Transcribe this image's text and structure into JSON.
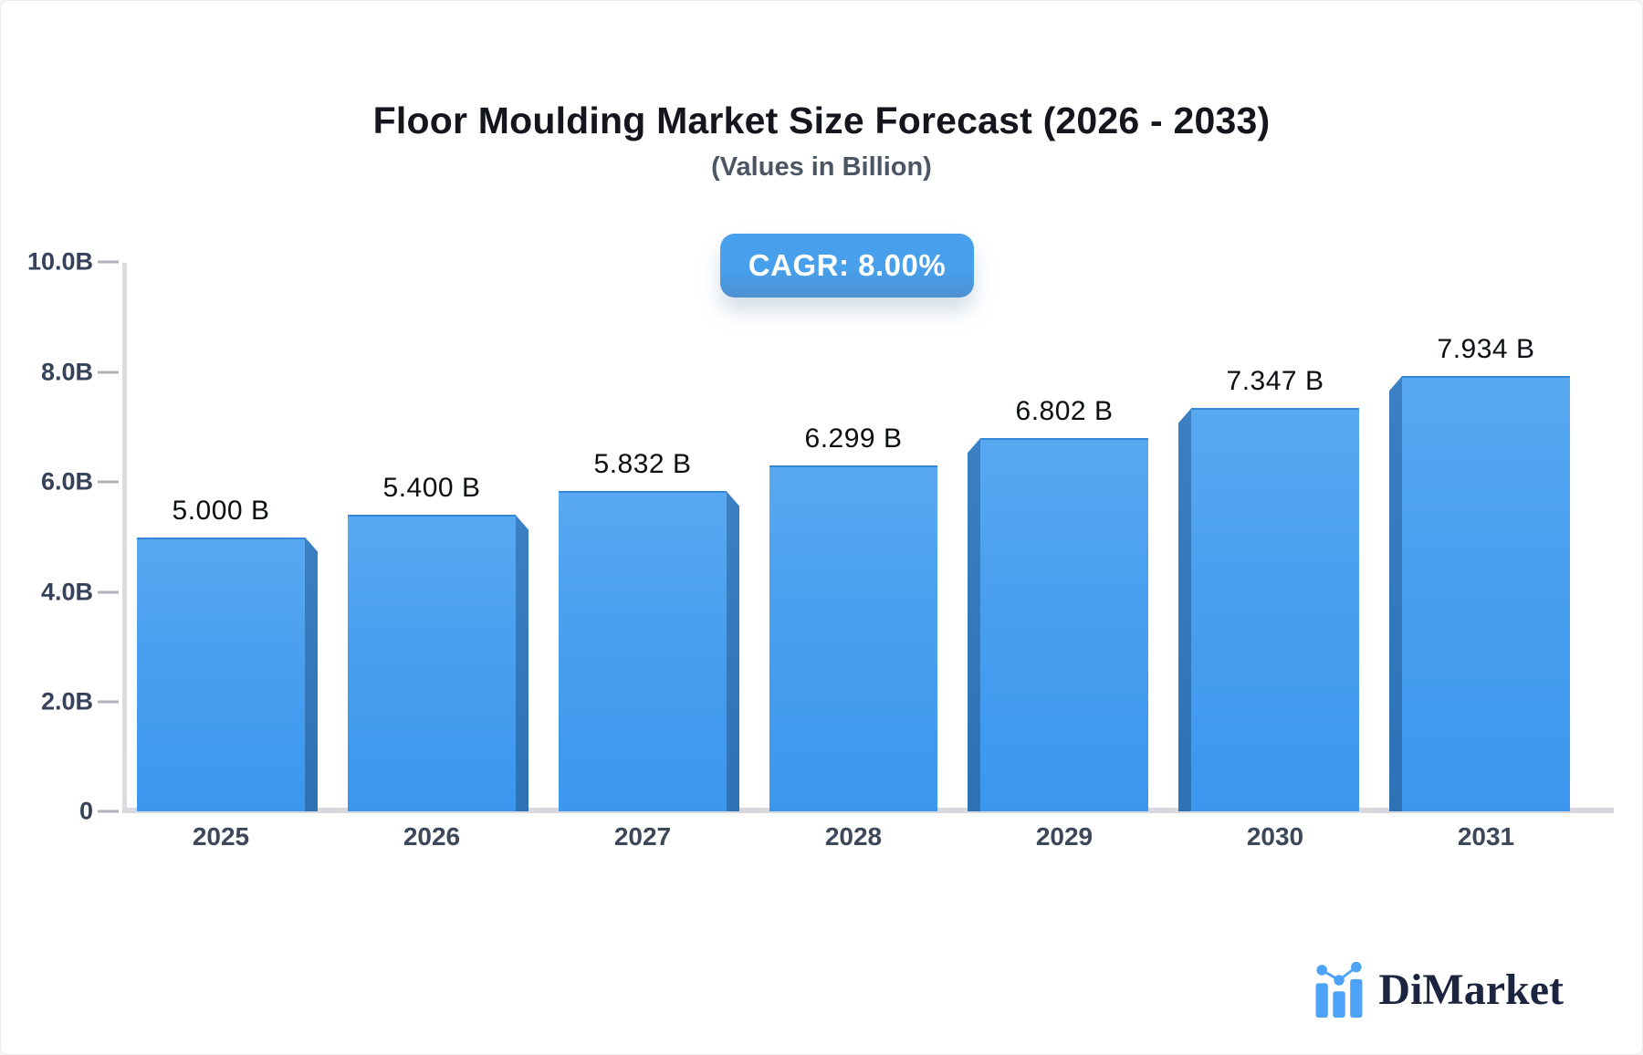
{
  "header": {
    "title": "Floor Moulding Market Size Forecast (2026 - 2033)",
    "subtitle": "(Values in Billion)",
    "cagr_badge_label": "CAGR: 8.00%"
  },
  "chart_data": {
    "type": "bar",
    "categories": [
      "2025",
      "2026",
      "2027",
      "2028",
      "2029",
      "2030",
      "2031"
    ],
    "values": [
      5.0,
      5.4,
      5.832,
      6.299,
      6.802,
      7.347,
      7.934
    ],
    "value_labels": [
      "5.000 B",
      "5.400 B",
      "5.832 B",
      "6.299 B",
      "6.802 B",
      "7.347 B",
      "7.934 B"
    ],
    "title": "Floor Moulding Market Size Forecast (2026 - 2033)",
    "subtitle": "(Values in Billion)",
    "xlabel": "",
    "ylabel": "",
    "ylim": [
      0,
      10
    ],
    "ytick_labels": [
      "10.0B",
      "8.0B",
      "6.0B",
      "4.0B",
      "2.0B",
      "0"
    ],
    "ytick_values": [
      10,
      8,
      6,
      4,
      2,
      0
    ],
    "grid": false,
    "legend_position": "none",
    "annotation": "CAGR: 8.00%"
  },
  "colors": {
    "bar_top": "#58a9f1",
    "bar_bottom": "#3b97ee",
    "bar_side": "#2d72b4",
    "badge_blue": "#47a0ec",
    "axis_line": "#dcdce2",
    "axis_text": "#36425a",
    "title_text": "#14151d",
    "logo_navy": "#1c2540",
    "logo_blue": "#4da3f7"
  },
  "branding": {
    "logo_text": "DiMarket",
    "logo_icon": "mini-bar-chart-logo-icon"
  }
}
